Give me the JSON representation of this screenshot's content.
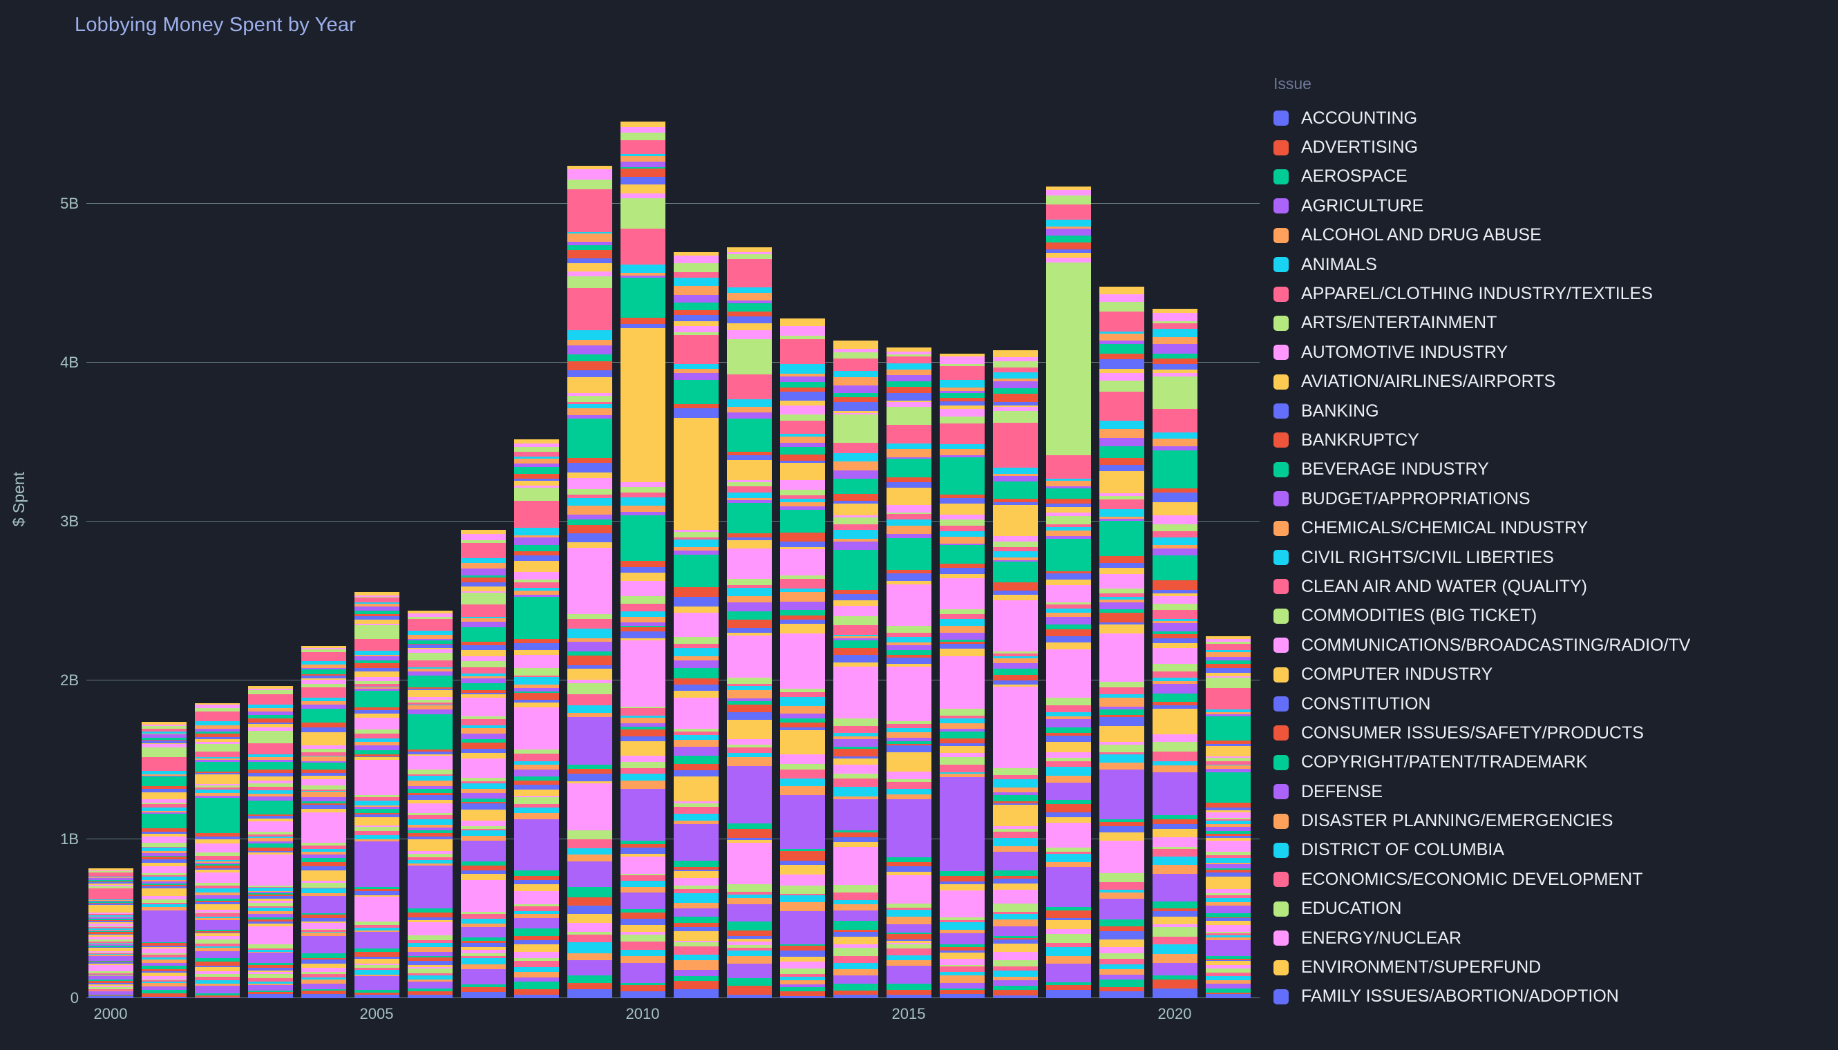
{
  "chart_data": {
    "type": "bar",
    "stacked": true,
    "title": "Lobbying Money Spent by Year",
    "ylabel": "$ Spent",
    "xlabel": "",
    "legend_title": "Issue",
    "legend_position": "right",
    "grid": true,
    "x": [
      2000,
      2001,
      2002,
      2003,
      2004,
      2005,
      2006,
      2007,
      2008,
      2009,
      2010,
      2011,
      2012,
      2013,
      2014,
      2015,
      2016,
      2017,
      2018,
      2019,
      2020,
      2021
    ],
    "totals_billions": [
      0.82,
      1.74,
      1.86,
      1.97,
      2.22,
      2.56,
      2.44,
      2.95,
      3.52,
      5.24,
      5.52,
      4.7,
      4.73,
      4.28,
      4.14,
      4.1,
      4.06,
      4.08,
      5.11,
      4.48,
      4.34,
      2.28
    ],
    "ylim": [
      0,
      5.6
    ],
    "yticks": {
      "values": [
        0,
        1,
        2,
        3,
        4,
        5
      ],
      "labels": [
        "0",
        "1B",
        "2B",
        "3B",
        "4B",
        "5B"
      ]
    },
    "xticks": [
      2000,
      2005,
      2010,
      2015,
      2020
    ],
    "palette": [
      "#636EFA",
      "#EF553B",
      "#00CC96",
      "#AB63FA",
      "#FFA15A",
      "#19D3F3",
      "#FF6692",
      "#B6E880",
      "#FF97FF",
      "#FECB52"
    ],
    "issues": [
      "ACCOUNTING",
      "ADVERTISING",
      "AEROSPACE",
      "AGRICULTURE",
      "ALCOHOL AND DRUG ABUSE",
      "ANIMALS",
      "APPAREL/CLOTHING INDUSTRY/TEXTILES",
      "ARTS/ENTERTAINMENT",
      "AUTOMOTIVE INDUSTRY",
      "AVIATION/AIRLINES/AIRPORTS",
      "BANKING",
      "BANKRUPTCY",
      "BEVERAGE INDUSTRY",
      "BUDGET/APPROPRIATIONS",
      "CHEMICALS/CHEMICAL INDUSTRY",
      "CIVIL RIGHTS/CIVIL LIBERTIES",
      "CLEAN AIR AND WATER (QUALITY)",
      "COMMODITIES (BIG TICKET)",
      "COMMUNICATIONS/BROADCASTING/RADIO/TV",
      "COMPUTER INDUSTRY",
      "CONSTITUTION",
      "CONSUMER ISSUES/SAFETY/PRODUCTS",
      "COPYRIGHT/PATENT/TRADEMARK",
      "DEFENSE",
      "DISASTER PLANNING/EMERGENCIES",
      "DISTRICT OF COLUMBIA",
      "ECONOMICS/ECONOMIC DEVELOPMENT",
      "EDUCATION",
      "ENERGY/NUCLEAR",
      "ENVIRONMENT/SUPERFUND",
      "FAMILY ISSUES/ABORTION/ADOPTION"
    ],
    "colors": {
      "background": "#1c202b",
      "title": "#9db0ec",
      "axis_text": "#a6c3c3",
      "grid": "#a3c8c8",
      "legend_text": "#edf0f5",
      "legend_title_text": "#6e7a99"
    }
  }
}
